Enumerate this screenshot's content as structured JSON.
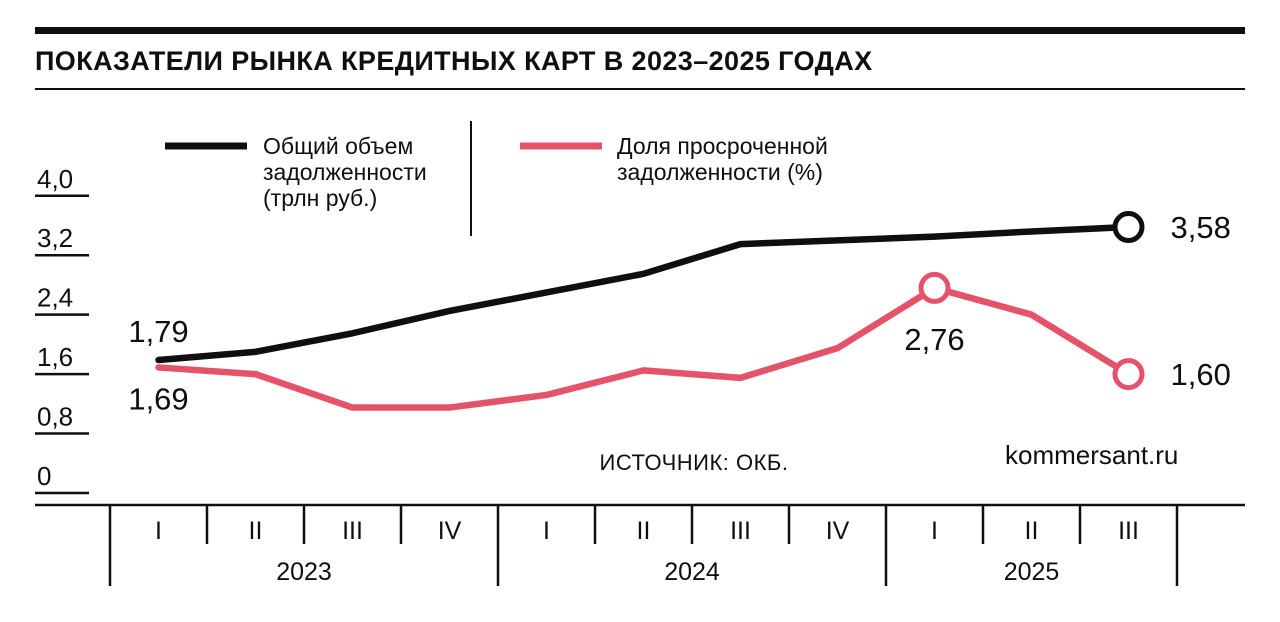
{
  "title": "ПОКАЗАТЕЛИ РЫНКА КРЕДИТНЫХ КАРТ В 2023–2025 ГОДАХ",
  "source_label": "ИСТОЧНИК: ОКБ.",
  "watermark": "kommersant.ru",
  "colors": {
    "background": "#ffffff",
    "text": "#0f0f0f",
    "total_debt_line": "#0f0f0f",
    "overdue_share_line": "#e5536b",
    "watermark_gray": "#a9a9a9"
  },
  "chart_data": {
    "type": "line",
    "title": "ПОКАЗАТЕЛИ РЫНКА КРЕДИТНЫХ КАРТ В 2023–2025 ГОДАХ",
    "y_ticks": [
      "4,0",
      "3,2",
      "2,4",
      "1,6",
      "0,8",
      "0"
    ],
    "y_tick_values": [
      4.0,
      3.2,
      2.4,
      1.6,
      0.8,
      0
    ],
    "ylim": [
      0,
      4.0
    ],
    "grid": false,
    "legend_position": "top",
    "x_quarter_labels": [
      "I",
      "II",
      "III",
      "IV",
      "I",
      "II",
      "III",
      "IV",
      "I",
      "II",
      "III"
    ],
    "x_year_groups": [
      {
        "label": "2023",
        "quarters": 4
      },
      {
        "label": "2024",
        "quarters": 4
      },
      {
        "label": "2025",
        "quarters": 3
      }
    ],
    "series": [
      {
        "id": "total-debt",
        "name": "Общий объем задолженности (трлн руб.)",
        "legend_lines": [
          "Общий объем",
          "задолженности",
          "(трлн руб.)"
        ],
        "color": "#0f0f0f",
        "values": [
          1.79,
          1.9,
          2.15,
          2.45,
          2.7,
          2.95,
          3.35,
          3.4,
          3.45,
          3.52,
          3.58
        ],
        "marked_points": [
          10
        ]
      },
      {
        "id": "overdue-share",
        "name": "Доля просроченной задолженности (%)",
        "legend_lines": [
          "Доля просроченной",
          "задолженности (%)"
        ],
        "color": "#e5536b",
        "values": [
          1.69,
          1.6,
          1.15,
          1.15,
          1.32,
          1.65,
          1.55,
          1.95,
          2.76,
          2.4,
          1.6
        ],
        "marked_points": [
          8,
          10
        ]
      }
    ],
    "annotations": [
      {
        "text": "1,79",
        "series": 0,
        "index": 0,
        "position": "above"
      },
      {
        "text": "3,58",
        "series": 0,
        "index": 10,
        "position": "right"
      },
      {
        "text": "1,69",
        "series": 1,
        "index": 0,
        "position": "below"
      },
      {
        "text": "2,76",
        "series": 1,
        "index": 8,
        "position": "below"
      },
      {
        "text": "1,60",
        "series": 1,
        "index": 10,
        "position": "right"
      }
    ]
  }
}
